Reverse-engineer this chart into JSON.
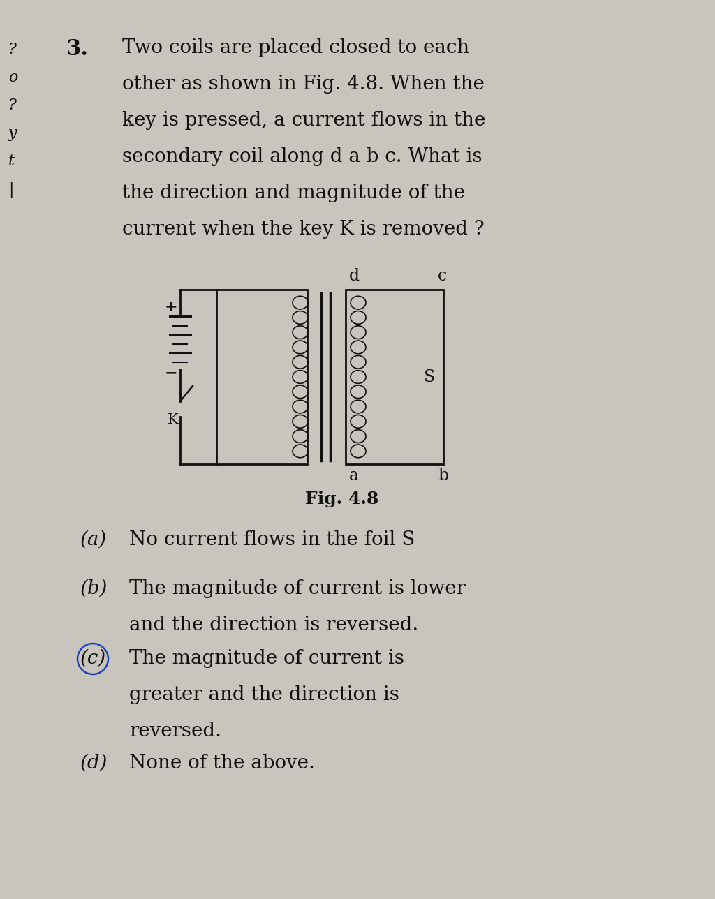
{
  "bg_color": "#c8c4be",
  "text_color": "#111111",
  "font_size_question": 20,
  "font_size_options": 20,
  "font_size_fig": 18,
  "font_size_label": 16,
  "q_number": "3.",
  "question_lines": [
    "Two coils are placed closed to each",
    "other as shown in Fig. 4.8. When the",
    "key is pressed, a current flows in the",
    "secondary coil along d a b c. What is",
    "the direction and magnitude of the",
    "current when the key K is removed ?"
  ],
  "fig_caption": "Fig. 4.8",
  "left_margin": [
    "?",
    "o",
    "?",
    "y",
    "t",
    "|"
  ],
  "option_a": "No current flows in the foil S",
  "option_b_1": "The magnitude of current is lower",
  "option_b_2": "and the direction is reversed.",
  "option_c_1": "The magnitude of current is",
  "option_c_2": "greater and the direction is",
  "option_c_3": "reversed.",
  "option_d": "None of the above.",
  "circle_color": "#2244bb"
}
